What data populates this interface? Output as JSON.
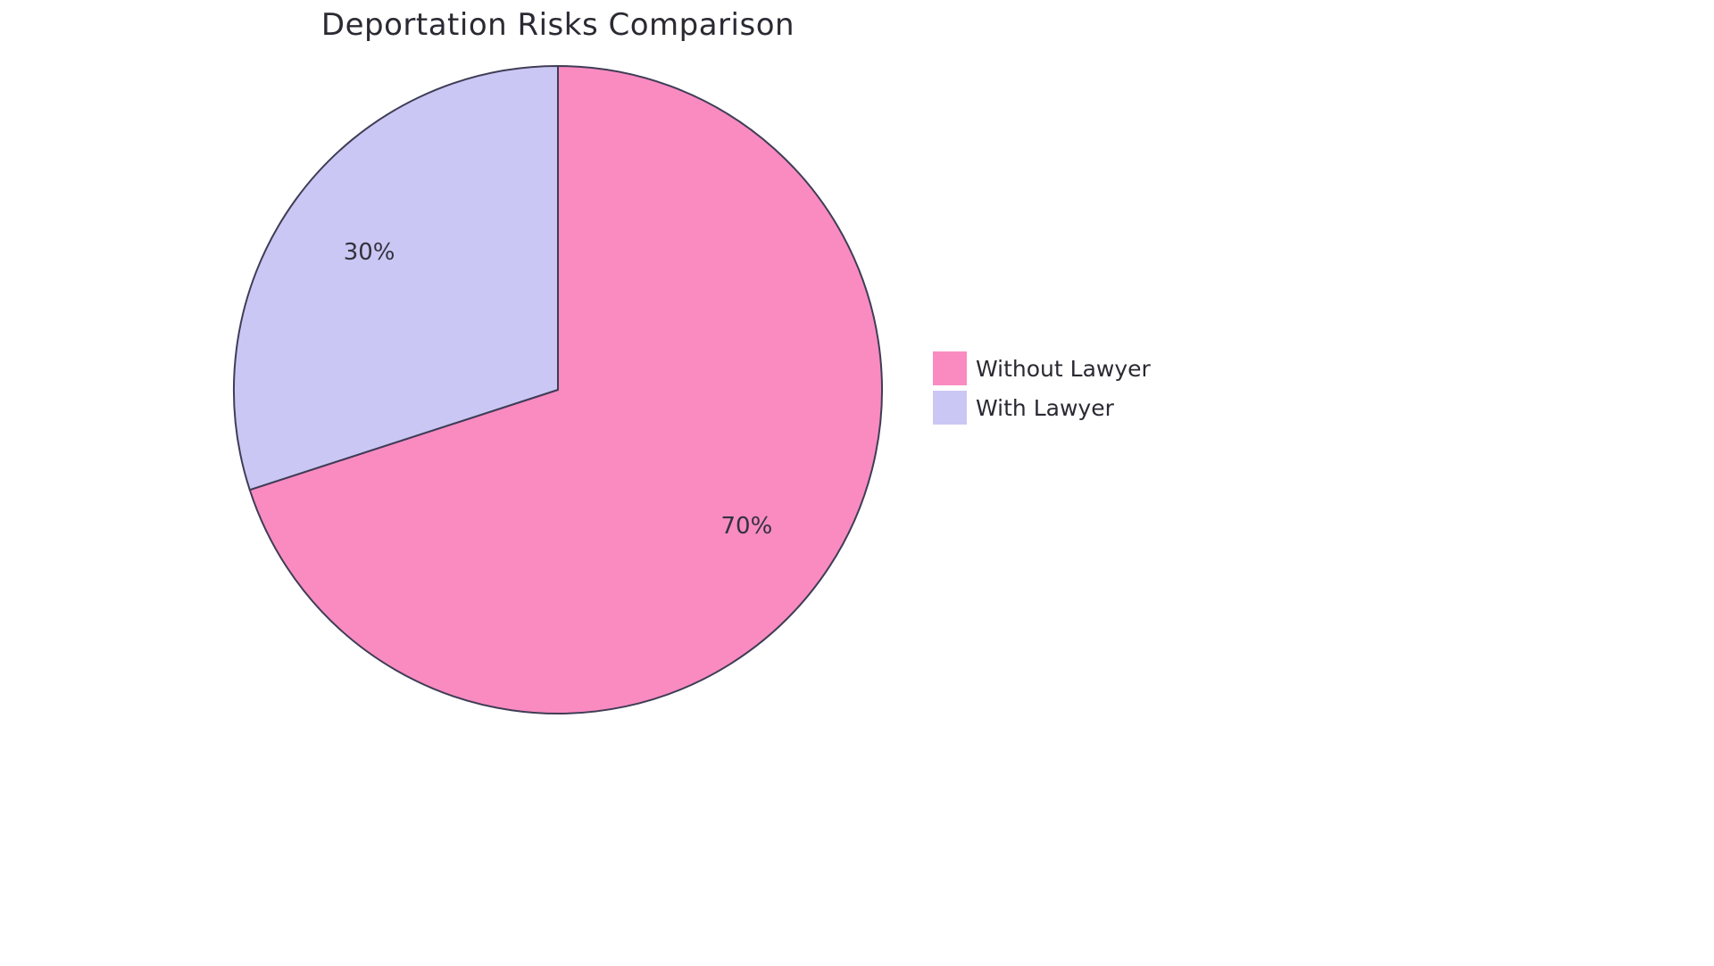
{
  "chart_data": {
    "type": "pie",
    "title": "Deportation Risks Comparison",
    "labels": [
      "Without Lawyer",
      "With Lawyer"
    ],
    "values": [
      70,
      30
    ],
    "slice_labels": [
      "70%",
      "30%"
    ],
    "colors": [
      "#F98BC1",
      "#CBC7F4"
    ],
    "stroke_color": "#3F3D56",
    "title_color": "#2B2A33",
    "label_color": "#33323E",
    "legend_position": "right",
    "start_angle": "top",
    "direction": "clockwise"
  }
}
